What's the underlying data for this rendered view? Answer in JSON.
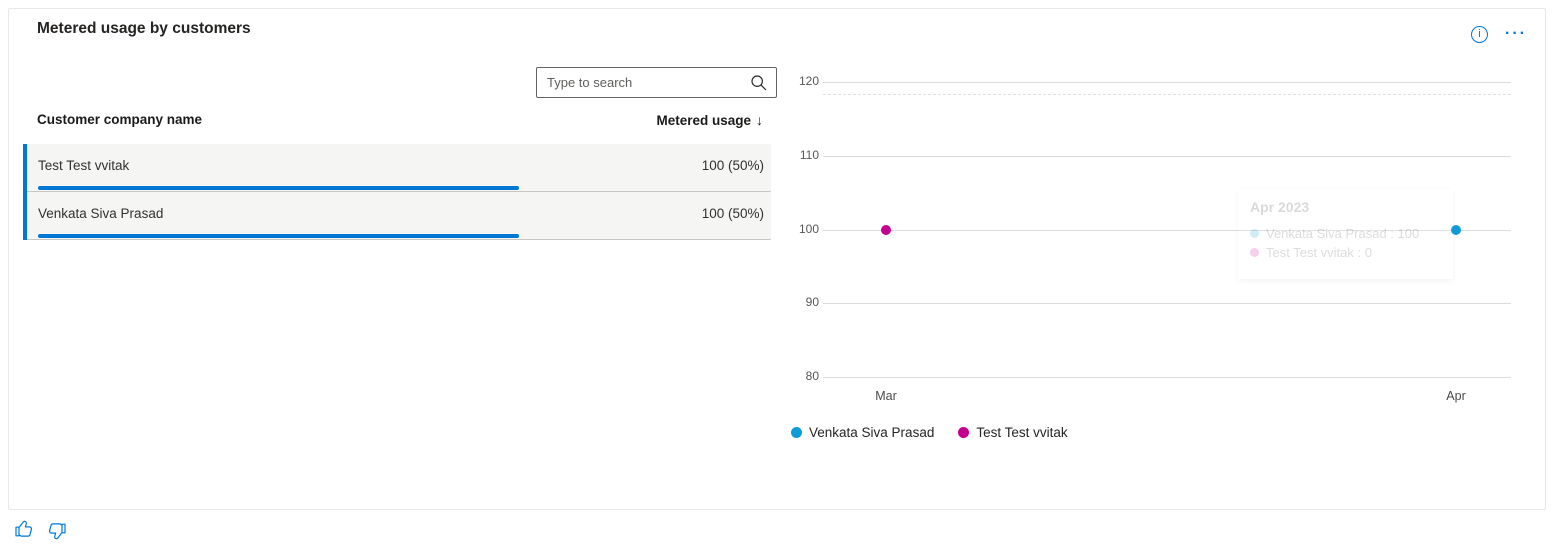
{
  "card": {
    "title": "Metered usage by customers",
    "info_glyph": "i",
    "more_glyph": "···"
  },
  "search": {
    "placeholder": "Type to search"
  },
  "table": {
    "columns": [
      "Customer company name",
      "Metered usage"
    ],
    "sort_arrow": "↓",
    "rows": [
      {
        "name": "Test Test vvitak",
        "value": "100 (50%)",
        "bar_pct": 64.7
      },
      {
        "name": "Venkata Siva Prasad",
        "value": "100 (50%)",
        "bar_pct": 64.7
      }
    ]
  },
  "chart_data": {
    "type": "scatter",
    "title": "",
    "xlabel": "",
    "ylabel": "",
    "x_categories": [
      "Mar",
      "Apr"
    ],
    "ylim": [
      80,
      120
    ],
    "yticks": [
      120,
      110,
      100,
      90,
      80
    ],
    "dashed_line_y": 118.4,
    "grid": true,
    "legend_position": "bottom",
    "series": [
      {
        "name": "Venkata Siva Prasad",
        "color": "#0f9bd7",
        "points": [
          {
            "x": "Apr",
            "y": 100
          }
        ]
      },
      {
        "name": "Test Test vvitak",
        "color": "#c4008f",
        "points": [
          {
            "x": "Mar",
            "y": 100
          }
        ]
      }
    ],
    "tooltip": {
      "title": "Apr 2023",
      "entries": [
        {
          "label": "Venkata Siva Prasad",
          "value": "100",
          "color": "#0f9bd7"
        },
        {
          "label": "Test Test vvitak",
          "value": "0",
          "color": "#c4008f"
        }
      ]
    }
  },
  "colors": {
    "accent_blue": "#0078d4",
    "series_blue": "#0f9bd7",
    "series_magenta": "#c4008f",
    "row_bg": "#f5f5f4"
  },
  "icons": {
    "info": "info-icon",
    "more_options": "more-options-icon",
    "search": "search-icon",
    "sort_descending": "sort-desc-icon",
    "thumb_up": "thumb-up-icon",
    "thumb_down": "thumb-down-icon"
  }
}
